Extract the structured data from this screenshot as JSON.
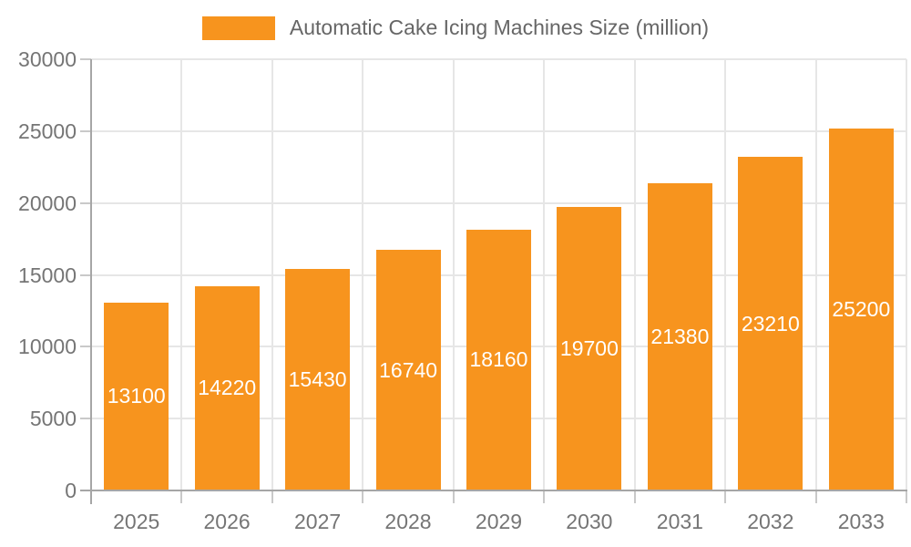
{
  "chart_data": {
    "type": "bar",
    "title": "Automatic Cake Icing Machines Size (million)",
    "legend": "Automatic Cake Icing Machines Size (million)",
    "legend_position": "top-center",
    "categories": [
      "2025",
      "2026",
      "2027",
      "2028",
      "2029",
      "2030",
      "2031",
      "2032",
      "2033"
    ],
    "series": [
      {
        "name": "Automatic Cake Icing Machines Size (million)",
        "values": [
          13100,
          14220,
          15430,
          16740,
          18160,
          19700,
          21380,
          23210,
          25200
        ]
      }
    ],
    "bar_value_labels": [
      "13100",
      "14220",
      "15430",
      "16740",
      "18160",
      "19700",
      "21380",
      "23210",
      "25200"
    ],
    "xlabel": "",
    "ylabel": "",
    "ylim": [
      0,
      30000
    ],
    "yticks": [
      0,
      5000,
      10000,
      15000,
      20000,
      25000,
      30000
    ],
    "grid": "horizontal and vertical gridlines on"
  },
  "colors": {
    "bar": "#F7941E",
    "bar_value_text": "#FFFFFF",
    "axis_line": "#A6A6A6",
    "tick": "#C9C9C9",
    "gridline": "#E6E6E6",
    "axis_text": "#757575",
    "legend_text": "#666666",
    "background": "#FFFFFF"
  }
}
